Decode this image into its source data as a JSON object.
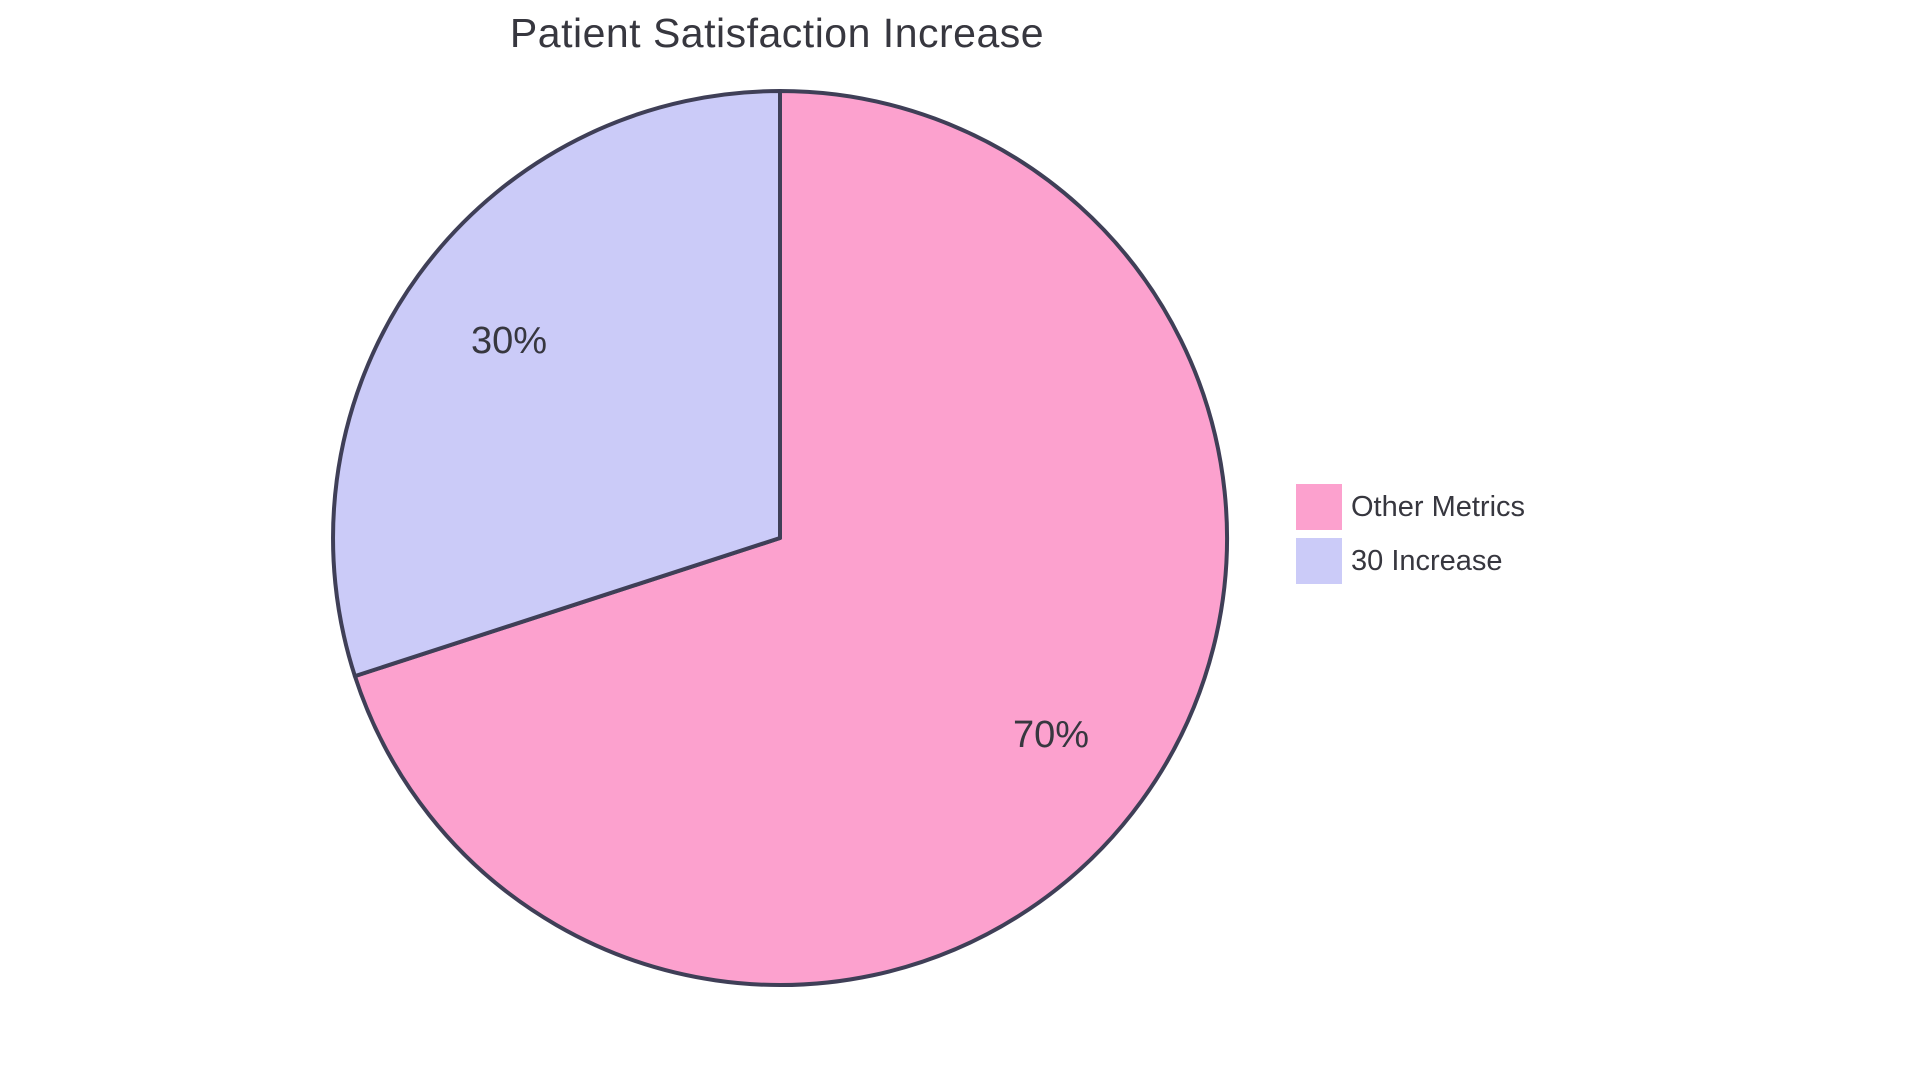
{
  "title": "Patient Satisfaction Increase",
  "chart_data": {
    "type": "pie",
    "title": "Patient Satisfaction Increase",
    "slices": [
      {
        "name": "Other Metrics",
        "value": 70,
        "label": "70%",
        "color": "#FCA1CE"
      },
      {
        "name": "30 Increase",
        "value": 30,
        "label": "30%",
        "color": "#CBCBF8"
      }
    ],
    "start_angle_deg": -90,
    "direction": "clockwise",
    "stroke_color": "#3F3F57",
    "label_color": "#37373F",
    "legend_position": "right",
    "background": "#ffffff"
  },
  "legend": {
    "items": [
      {
        "label": "Other Metrics",
        "color": "#FCA1CE"
      },
      {
        "label": "30 Increase",
        "color": "#CBCBF8"
      }
    ]
  }
}
